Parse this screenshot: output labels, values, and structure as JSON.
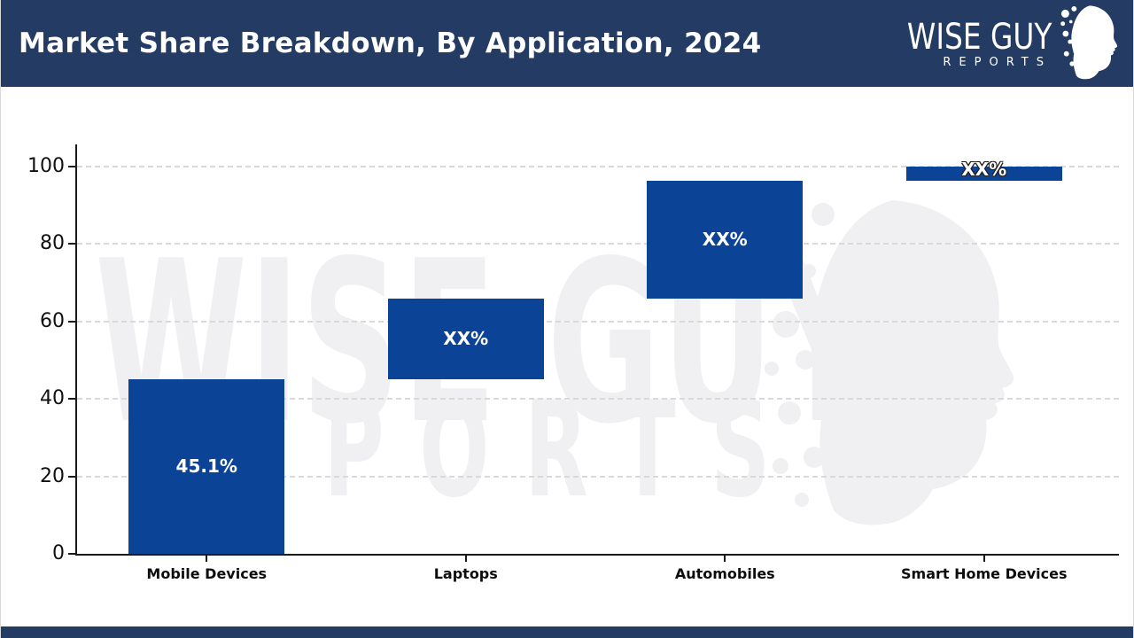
{
  "header": {
    "title": "Market Share Breakdown, By Application, 2024",
    "bg_color": "#243b63",
    "logo": {
      "line1": "WISE GUY",
      "line2": "REPORTS"
    }
  },
  "watermark": {
    "line1": "WISE GUY",
    "line2": "REPORTS",
    "color": "#f0f0f2"
  },
  "footer": {
    "bg_color": "#243b63"
  },
  "chart_data": {
    "type": "bar",
    "subtype": "floating-waterfall",
    "title": "Market Share Breakdown, By Application, 2024",
    "categories": [
      "Mobile Devices",
      "Laptops",
      "Automobiles",
      "Smart Home Devices"
    ],
    "segments": [
      {
        "category": "Mobile Devices",
        "start": 0,
        "end": 45.1,
        "label": "45.1%"
      },
      {
        "category": "Laptops",
        "start": 45.1,
        "end": 65.8,
        "label": "XX%"
      },
      {
        "category": "Automobiles",
        "start": 65.8,
        "end": 96.3,
        "label": "XX%"
      },
      {
        "category": "Smart Home Devices",
        "start": 96.3,
        "end": 100,
        "label": "XX%"
      }
    ],
    "yticks": [
      0,
      20,
      40,
      60,
      80,
      100
    ],
    "ylim": [
      0,
      105.6
    ],
    "xlabel": "",
    "ylabel": "",
    "grid": "horizontal-dashed",
    "legend": "none",
    "bar_color": "#0b4397",
    "label_color": "#ffffff",
    "axis_color": "#1a1a1a"
  }
}
